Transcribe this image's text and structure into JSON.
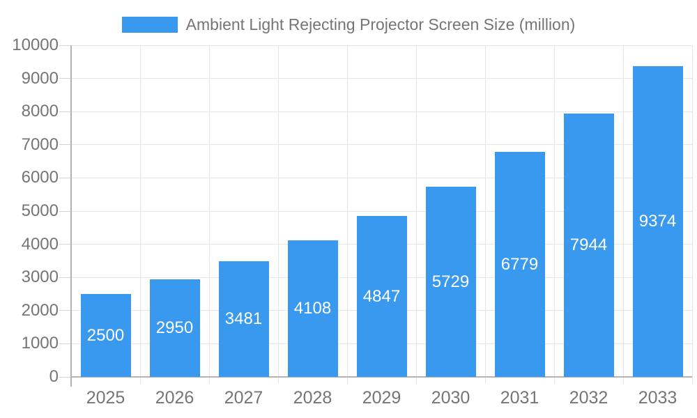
{
  "legend": {
    "label": "Ambient Light Rejecting Projector Screen Size (million)"
  },
  "colors": {
    "bar": "#3999EE",
    "grid_line": "#e6e6e6",
    "axis_line": "#b3b3b3",
    "tick_line": "#d4d4d4",
    "text_gray": "#757575",
    "bar_label_text": "#ffffff",
    "background": "#ffffff"
  },
  "chart_data": {
    "type": "bar",
    "title": "Ambient Light Rejecting Projector Screen Size (million)",
    "categories": [
      "2025",
      "2026",
      "2027",
      "2028",
      "2029",
      "2030",
      "2031",
      "2032",
      "2033"
    ],
    "values": [
      2500,
      2950,
      3481,
      4108,
      4847,
      5729,
      6779,
      7944,
      9374
    ],
    "xlabel": "",
    "ylabel": "",
    "ylim": [
      0,
      10000
    ],
    "ytick_interval": 1000,
    "ytick_labels": [
      "0",
      "1000",
      "2000",
      "3000",
      "4000",
      "5000",
      "6000",
      "7000",
      "8000",
      "9000",
      "10000"
    ],
    "grid": true,
    "legend_position": "top",
    "bar_value_labels": "inside-center"
  }
}
